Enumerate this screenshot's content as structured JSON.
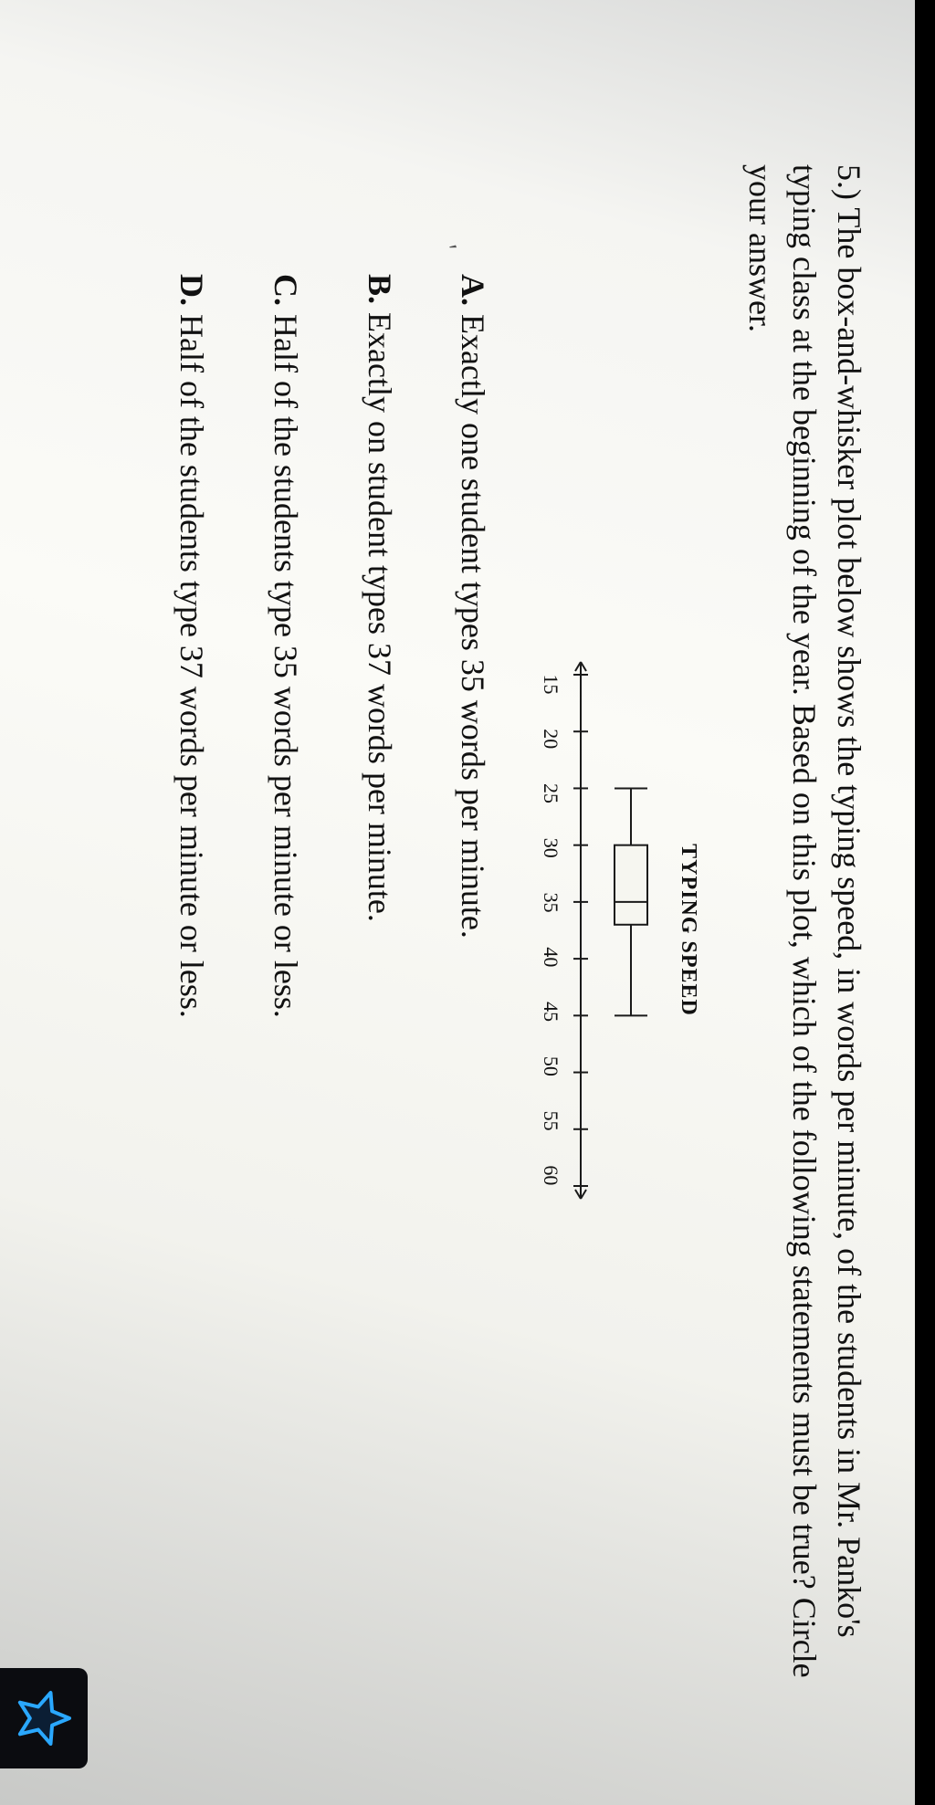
{
  "question": {
    "number": "5.)",
    "text": "The box-and-whisker plot below shows the typing speed, in words per minute, of the students in Mr. Panko's typing class at the beginning of the year. Based on this plot, which of the following statements must be true? Circle your answer."
  },
  "chart": {
    "type": "boxplot",
    "title": "TYPING SPEED",
    "title_fontsize": 24,
    "axis_min": 15,
    "axis_max": 60,
    "tick_step": 5,
    "tick_labels": [
      "15",
      "20",
      "25",
      "30",
      "35",
      "40",
      "45",
      "50",
      "55",
      "60"
    ],
    "min": 25,
    "q1": 30,
    "median": 35,
    "q3": 37,
    "max": 45,
    "stroke_color": "#1a1a1a",
    "fill_color": "#f6f6f0",
    "stroke_width": 2,
    "tick_label_fontsize": 22
  },
  "choices": [
    {
      "letter": "A.",
      "text": "Exactly one student types 35 words per minute."
    },
    {
      "letter": "B.",
      "text": "Exactly on student types 37 words per minute."
    },
    {
      "letter": "C.",
      "text": "Half of the students type 35 words per minute or less."
    },
    {
      "letter": "D.",
      "text": "Half of the students type 37 words per minute or less."
    }
  ],
  "colors": {
    "paper_bg": "#f4f4ef",
    "text": "#111111",
    "frame": "#000000",
    "star_outline": "#2aa8ff",
    "star_fill": "#0b1e34"
  }
}
